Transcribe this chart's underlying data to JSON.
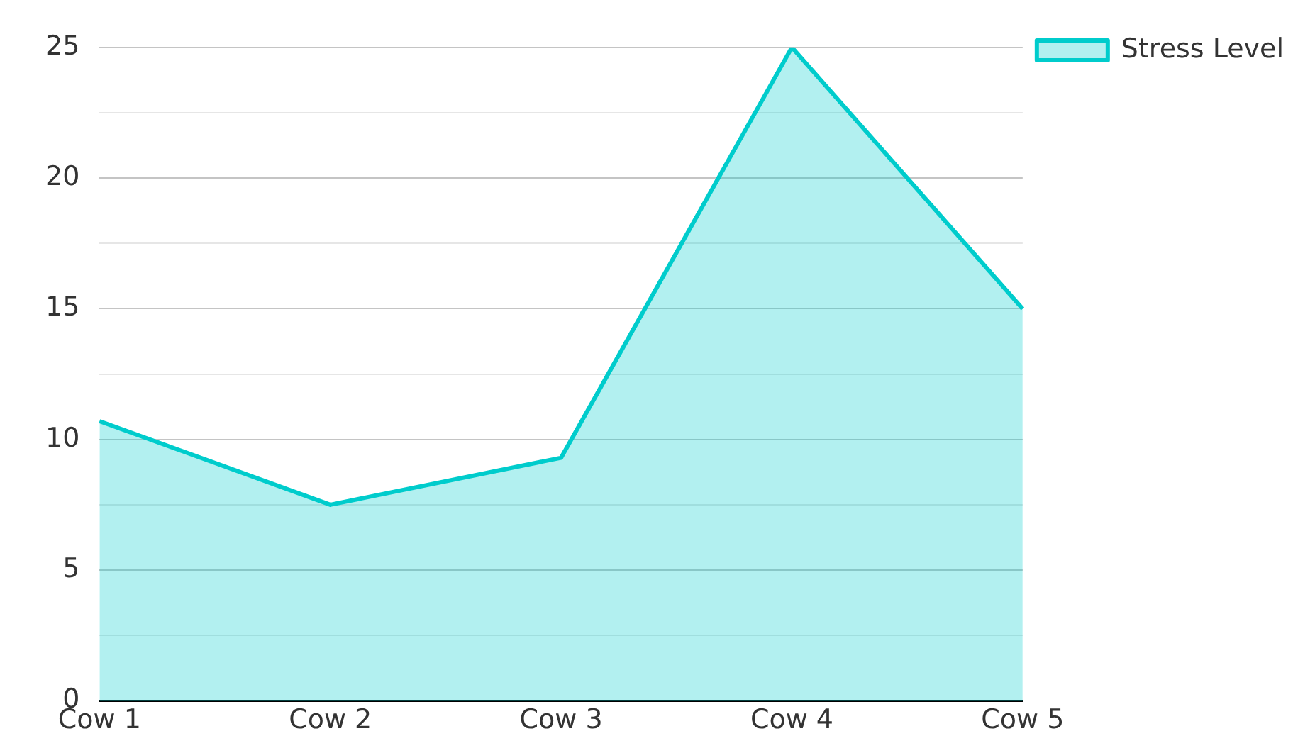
{
  "chart_data": {
    "type": "area",
    "categories": [
      "Cow 1",
      "Cow 2",
      "Cow 3",
      "Cow 4",
      "Cow 5"
    ],
    "series": [
      {
        "name": "Stress Level",
        "color": "#00cccc",
        "values": [
          10.7,
          7.5,
          9.3,
          25,
          15
        ]
      }
    ],
    "ylim": [
      0,
      25
    ],
    "yticks": [
      0,
      {
        "value": 2.5,
        "label": null
      },
      5,
      {
        "value": 7.5,
        "label": null
      },
      10,
      {
        "value": 12.5,
        "label": null
      },
      15,
      {
        "value": 17.5,
        "label": null
      },
      20,
      {
        "value": 22.5,
        "label": null
      },
      25
    ],
    "grid": "y",
    "legend": "top right"
  }
}
